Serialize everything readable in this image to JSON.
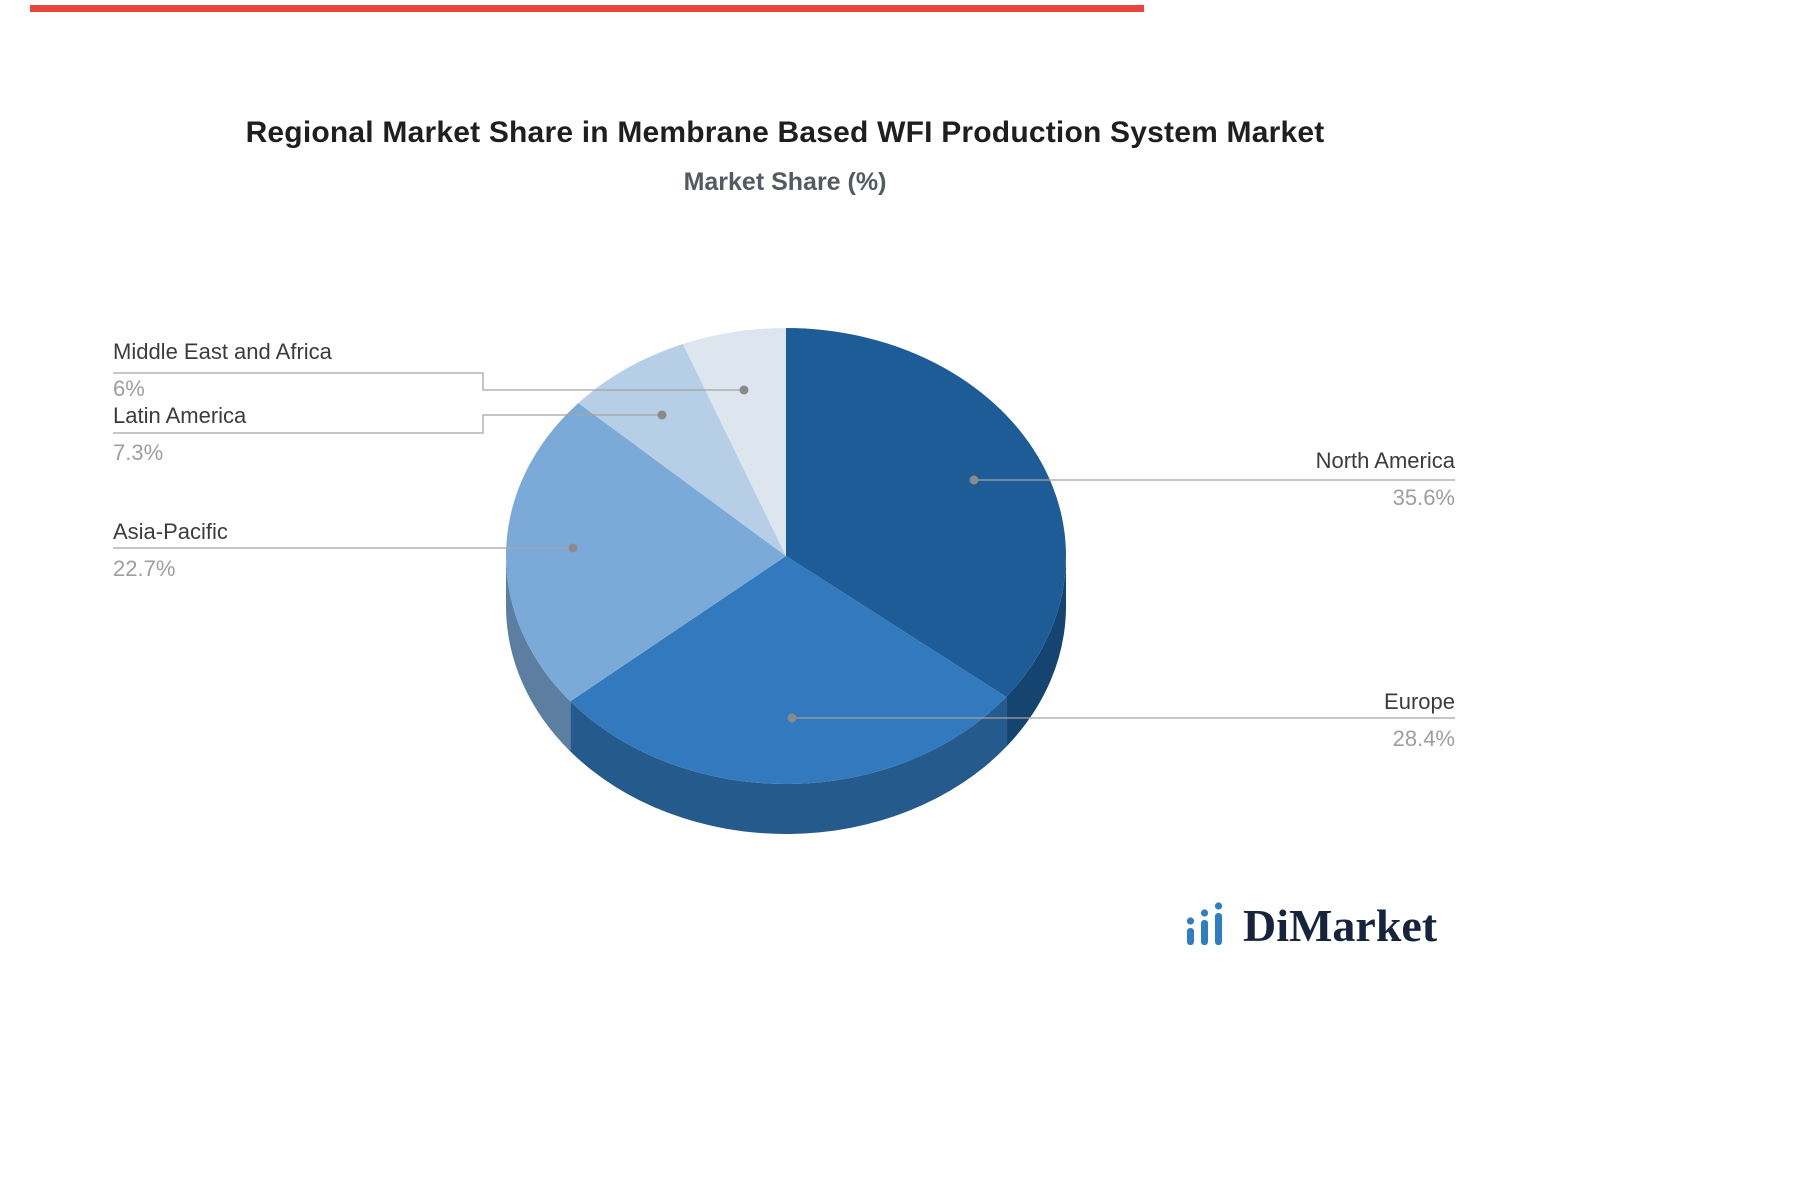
{
  "page": {
    "background": "#ffffff",
    "top_bar_color": "#e8453c"
  },
  "chart": {
    "title": "Regional Market Share in Membrane Based WFI Production System Market",
    "subtitle": "Market Share (%)"
  },
  "chart_data": {
    "type": "pie",
    "style": "3d",
    "title": "Regional Market Share in Membrane Based WFI Production System Market",
    "subtitle": "Market Share (%)",
    "unit": "%",
    "direction": "clockwise",
    "start_angle_deg": 0,
    "legend_position": "callout-labels",
    "slices": [
      {
        "label": "North America",
        "value": 35.6,
        "display": "35.6%",
        "color": "#1e5c97"
      },
      {
        "label": "Europe",
        "value": 28.4,
        "display": "28.4%",
        "color": "#3279bd"
      },
      {
        "label": "Asia-Pacific",
        "value": 22.7,
        "display": "22.7%",
        "color": "#7caad8"
      },
      {
        "label": "Latin America",
        "value": 7.3,
        "display": "7.3%",
        "color": "#b7cee7"
      },
      {
        "label": "Middle East and Africa",
        "value": 6,
        "display": "6%",
        "color": "#dde5ee"
      }
    ],
    "connector_color": "#a3a3a3",
    "dot_color": "#8a8a8a"
  },
  "logo": {
    "text": "DiMarket",
    "icon": "bar-chart-icon",
    "icon_color": "#2f7dc4",
    "text_color": "#16243c"
  }
}
